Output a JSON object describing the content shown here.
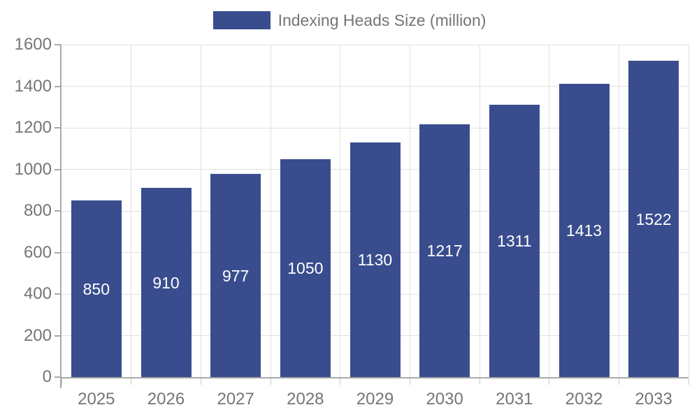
{
  "legend": {
    "label": "Indexing Heads Size (million)"
  },
  "colors": {
    "bar": "#394d8e",
    "bar_label": "#ffffff",
    "axis_text": "#757575",
    "legend_text": "#757575",
    "axis_line": "#a9a9a9",
    "grid_line": "#e0e0e0",
    "tick_line": "#c9c9c9",
    "background": "#ffffff"
  },
  "chart_data": {
    "type": "bar",
    "title": "Indexing Heads Size (million)",
    "categories": [
      "2025",
      "2026",
      "2027",
      "2028",
      "2029",
      "2030",
      "2031",
      "2032",
      "2033"
    ],
    "series": [
      {
        "name": "Indexing Heads Size (million)",
        "values": [
          850,
          910,
          977,
          1050,
          1130,
          1217,
          1311,
          1413,
          1522
        ]
      }
    ],
    "xlabel": "",
    "ylabel": "",
    "ylim": [
      0,
      1600
    ],
    "ytick_interval": 200,
    "ytick_labels": [
      "0",
      "200",
      "400",
      "600",
      "800",
      "1000",
      "1200",
      "1400",
      "1600"
    ],
    "grid": "horizontal-and-vertical",
    "legend_position": "top-center",
    "value_labels": "inside-center-white"
  }
}
